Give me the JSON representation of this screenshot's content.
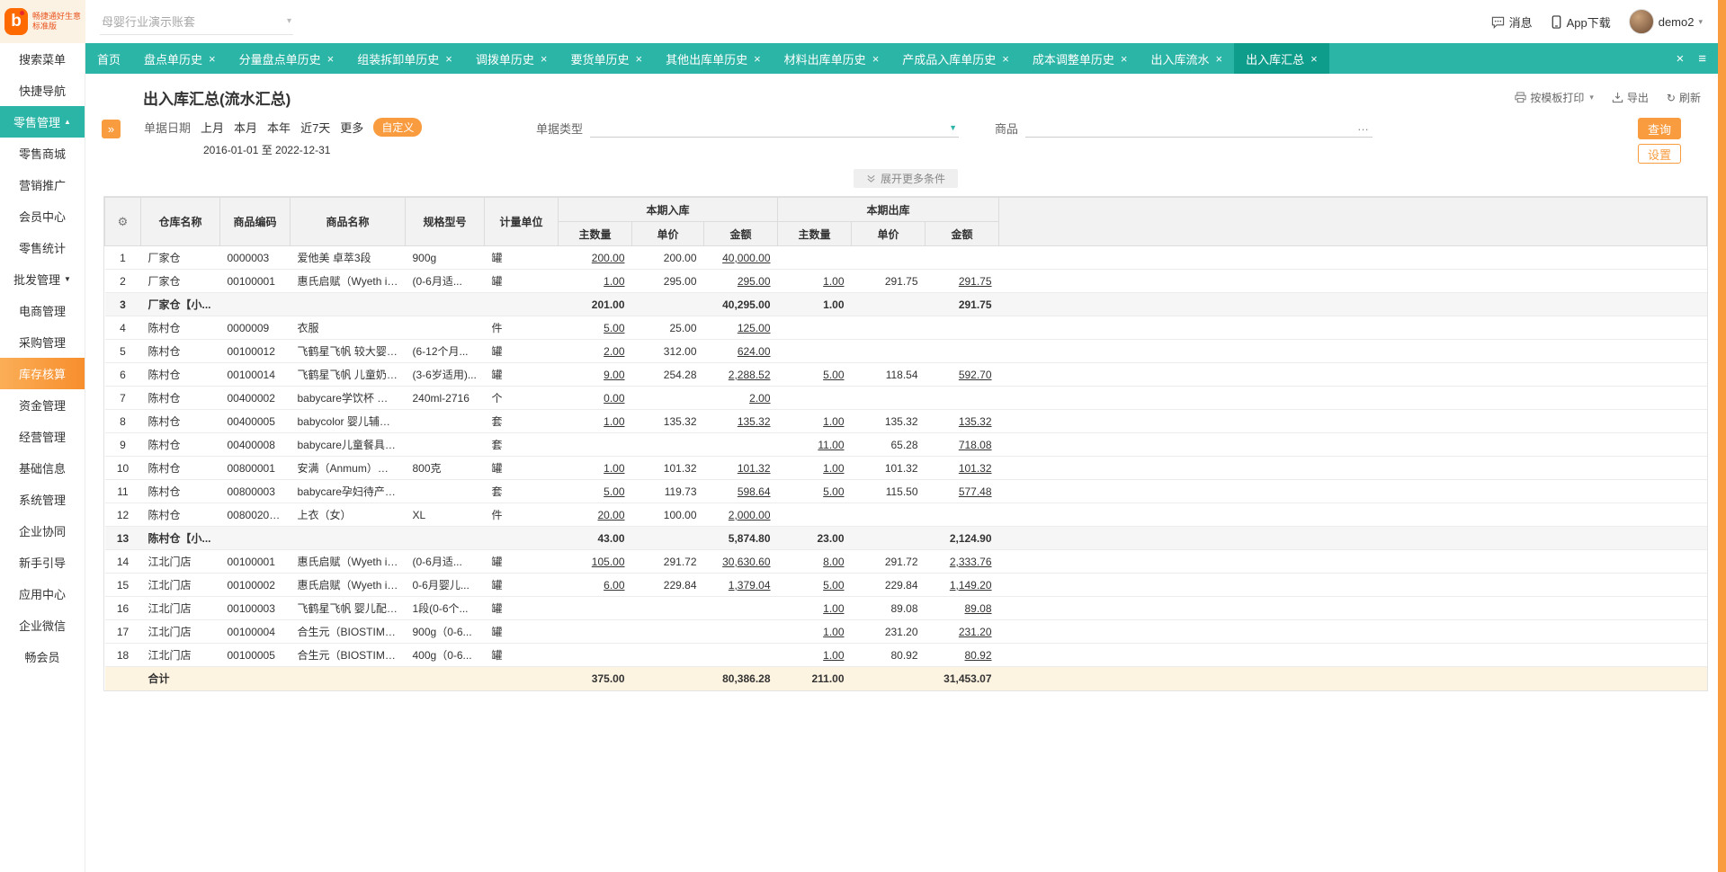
{
  "colors": {
    "teal": "#2bb5a6",
    "teal-dark": "#0e9c8b",
    "orange": "#f89c3f",
    "cream": "#fdf3e1"
  },
  "icons": {
    "collapse": "»",
    "gear": "⚙",
    "refresh": "↻",
    "caret_down": "▾",
    "ellipsis": "…",
    "close_all": "×",
    "menu": "≡"
  },
  "topbar": {
    "logo_line1": "畅捷通好生意",
    "logo_line2": "标准版",
    "logo_letter": "b",
    "account": "母婴行业演示账套",
    "messages": "消息",
    "app_download": "App下载",
    "username": "demo2"
  },
  "sidebar": {
    "items": [
      {
        "label": "搜索菜单",
        "type": "top"
      },
      {
        "label": "快捷导航",
        "type": "top"
      },
      {
        "label": "零售管理",
        "type": "group-active",
        "arrow": "up"
      },
      {
        "label": "零售商城",
        "type": "sub"
      },
      {
        "label": "营销推广",
        "type": "sub"
      },
      {
        "label": "会员中心",
        "type": "sub"
      },
      {
        "label": "零售统计",
        "type": "sub"
      },
      {
        "label": "批发管理",
        "type": "top",
        "arrow": "down"
      },
      {
        "label": "电商管理",
        "type": "top"
      },
      {
        "label": "采购管理",
        "type": "top"
      },
      {
        "label": "库存核算",
        "type": "active-orange"
      },
      {
        "label": "资金管理",
        "type": "top"
      },
      {
        "label": "经营管理",
        "type": "top"
      },
      {
        "label": "基础信息",
        "type": "top"
      },
      {
        "label": "系统管理",
        "type": "top"
      },
      {
        "label": "企业协同",
        "type": "top"
      },
      {
        "label": "新手引导",
        "type": "top"
      },
      {
        "label": "应用中心",
        "type": "top"
      },
      {
        "label": "企业微信",
        "type": "top"
      },
      {
        "label": "畅会员",
        "type": "top"
      }
    ]
  },
  "tabs": [
    {
      "label": "首页",
      "closable": false,
      "active": false
    },
    {
      "label": "盘点单历史",
      "closable": true,
      "active": false
    },
    {
      "label": "分量盘点单历史",
      "closable": true,
      "active": false
    },
    {
      "label": "组装拆卸单历史",
      "closable": true,
      "active": false
    },
    {
      "label": "调拨单历史",
      "closable": true,
      "active": false
    },
    {
      "label": "要货单历史",
      "closable": true,
      "active": false
    },
    {
      "label": "其他出库单历史",
      "closable": true,
      "active": false
    },
    {
      "label": "材料出库单历史",
      "closable": true,
      "active": false
    },
    {
      "label": "产成品入库单历史",
      "closable": true,
      "active": false
    },
    {
      "label": "成本调整单历史",
      "closable": true,
      "active": false
    },
    {
      "label": "出入库流水",
      "closable": true,
      "active": false
    },
    {
      "label": "出入库汇总",
      "closable": true,
      "active": true
    }
  ],
  "page": {
    "title": "出入库汇总(流水汇总)",
    "actions": {
      "print": "按模板打印",
      "export": "导出",
      "refresh": "刷新"
    },
    "filters": {
      "date_label": "单据日期",
      "date_options": [
        "上月",
        "本月",
        "本年",
        "近7天",
        "更多"
      ],
      "custom_badge": "自定义",
      "date_range": "2016-01-01 至 2022-12-31",
      "doc_type_label": "单据类型",
      "product_label": "商品",
      "search_button": "查询",
      "settings_button": "设置",
      "expand_more": "展开更多条件"
    }
  },
  "table": {
    "col_headers": {
      "warehouse": "仓库名称",
      "code": "商品编码",
      "name": "商品名称",
      "spec": "规格型号",
      "unit": "计量单位",
      "in_group": "本期入库",
      "out_group": "本期出库",
      "qty": "主数量",
      "price": "单价",
      "amount": "金额"
    },
    "rows": [
      {
        "num": "1",
        "type": "data",
        "warehouse": "厂家仓",
        "code": "0000003",
        "name": "爱他美 卓萃3段",
        "spec": "900g",
        "unit": "罐",
        "in_qty": "200.00",
        "in_price": "200.00",
        "in_amount": "40,000.00",
        "out_qty": "",
        "out_price": "",
        "out_amount": ""
      },
      {
        "num": "2",
        "type": "data",
        "warehouse": "厂家仓",
        "code": "00100001",
        "name": "惠氏启赋（Wyeth illu...",
        "spec": "(0-6月适...",
        "unit": "罐",
        "in_qty": "1.00",
        "in_price": "295.00",
        "in_amount": "295.00",
        "out_qty": "1.00",
        "out_price": "291.75",
        "out_amount": "291.75"
      },
      {
        "num": "3",
        "type": "subtotal",
        "warehouse": "厂家仓【小...",
        "code": "",
        "name": "",
        "spec": "",
        "unit": "",
        "in_qty": "201.00",
        "in_price": "",
        "in_amount": "40,295.00",
        "out_qty": "1.00",
        "out_price": "",
        "out_amount": "291.75"
      },
      {
        "num": "4",
        "type": "data",
        "warehouse": "陈村仓",
        "code": "0000009",
        "name": "衣服",
        "spec": "",
        "unit": "件",
        "in_qty": "5.00",
        "in_price": "25.00",
        "in_amount": "125.00",
        "out_qty": "",
        "out_price": "",
        "out_amount": ""
      },
      {
        "num": "5",
        "type": "data",
        "warehouse": "陈村仓",
        "code": "00100012",
        "name": "飞鹤星飞帆 较大婴儿配...",
        "spec": "(6-12个月...",
        "unit": "罐",
        "in_qty": "2.00",
        "in_price": "312.00",
        "in_amount": "624.00",
        "out_qty": "",
        "out_price": "",
        "out_amount": ""
      },
      {
        "num": "6",
        "type": "data",
        "warehouse": "陈村仓",
        "code": "00100014",
        "name": "飞鹤星飞帆 儿童奶粉 4...",
        "spec": "(3-6岁适用)...",
        "unit": "罐",
        "in_qty": "9.00",
        "in_price": "254.28",
        "in_amount": "2,288.52",
        "out_qty": "5.00",
        "out_price": "118.54",
        "out_amount": "592.70"
      },
      {
        "num": "7",
        "type": "data",
        "warehouse": "陈村仓",
        "code": "00400002",
        "name": "babycare学饮杯 儿童...",
        "spec": "240ml-2716",
        "unit": "个",
        "in_qty": "0.00",
        "in_price": "",
        "in_amount": "2.00",
        "out_qty": "",
        "out_price": "",
        "out_amount": ""
      },
      {
        "num": "8",
        "type": "data",
        "warehouse": "陈村仓",
        "code": "00400005",
        "name": "babycolor 婴儿辅食机 ...",
        "spec": "",
        "unit": "套",
        "in_qty": "1.00",
        "in_price": "135.32",
        "in_amount": "135.32",
        "out_qty": "1.00",
        "out_price": "135.32",
        "out_amount": "135.32"
      },
      {
        "num": "9",
        "type": "data",
        "warehouse": "陈村仓",
        "code": "00400008",
        "name": "babycare儿童餐具 婴...",
        "spec": "",
        "unit": "套",
        "in_qty": "",
        "in_price": "",
        "in_amount": "",
        "out_qty": "11.00",
        "out_price": "65.28",
        "out_amount": "718.08"
      },
      {
        "num": "10",
        "type": "data",
        "warehouse": "陈村仓",
        "code": "00800001",
        "name": "安满（Anmum）智孕...",
        "spec": "800克",
        "unit": "罐",
        "in_qty": "1.00",
        "in_price": "101.32",
        "in_amount": "101.32",
        "out_qty": "1.00",
        "out_price": "101.32",
        "out_amount": "101.32"
      },
      {
        "num": "11",
        "type": "data",
        "warehouse": "陈村仓",
        "code": "00800003",
        "name": "babycare孕妇待产包 ...",
        "spec": "",
        "unit": "套",
        "in_qty": "5.00",
        "in_price": "119.73",
        "in_amount": "598.64",
        "out_qty": "5.00",
        "out_price": "115.50",
        "out_amount": "577.48"
      },
      {
        "num": "12",
        "type": "data",
        "warehouse": "陈村仓",
        "code": "008002000...",
        "name": "上衣（女）",
        "spec": "XL",
        "unit": "件",
        "in_qty": "20.00",
        "in_price": "100.00",
        "in_amount": "2,000.00",
        "out_qty": "",
        "out_price": "",
        "out_amount": ""
      },
      {
        "num": "13",
        "type": "subtotal",
        "warehouse": "陈村仓【小...",
        "code": "",
        "name": "",
        "spec": "",
        "unit": "",
        "in_qty": "43.00",
        "in_price": "",
        "in_amount": "5,874.80",
        "out_qty": "23.00",
        "out_price": "",
        "out_amount": "2,124.90"
      },
      {
        "num": "14",
        "type": "data",
        "warehouse": "江北门店",
        "code": "00100001",
        "name": "惠氏启赋（Wyeth illu...",
        "spec": "(0-6月适...",
        "unit": "罐",
        "in_qty": "105.00",
        "in_price": "291.72",
        "in_amount": "30,630.60",
        "out_qty": "8.00",
        "out_price": "291.72",
        "out_amount": "2,333.76"
      },
      {
        "num": "15",
        "type": "data",
        "warehouse": "江北门店",
        "code": "00100002",
        "name": "惠氏启赋（Wyeth illu...",
        "spec": "0-6月婴儿...",
        "unit": "罐",
        "in_qty": "6.00",
        "in_price": "229.84",
        "in_amount": "1,379.04",
        "out_qty": "5.00",
        "out_price": "229.84",
        "out_amount": "1,149.20"
      },
      {
        "num": "16",
        "type": "data",
        "warehouse": "江北门店",
        "code": "00100003",
        "name": "飞鹤星飞帆 婴儿配方奶...",
        "spec": "1段(0-6个...",
        "unit": "罐",
        "in_qty": "",
        "in_price": "",
        "in_amount": "",
        "out_qty": "1.00",
        "out_price": "89.08",
        "out_amount": "89.08"
      },
      {
        "num": "17",
        "type": "data",
        "warehouse": "江北门店",
        "code": "00100004",
        "name": "合生元（BIOSTIME） ...",
        "spec": "900g（0-6...",
        "unit": "罐",
        "in_qty": "",
        "in_price": "",
        "in_amount": "",
        "out_qty": "1.00",
        "out_price": "231.20",
        "out_amount": "231.20"
      },
      {
        "num": "18",
        "type": "data",
        "warehouse": "江北门店",
        "code": "00100005",
        "name": "合生元（BIOSTIME） ...",
        "spec": "400g（0-6...",
        "unit": "罐",
        "in_qty": "",
        "in_price": "",
        "in_amount": "",
        "out_qty": "1.00",
        "out_price": "80.92",
        "out_amount": "80.92"
      }
    ],
    "footer": {
      "label": "合计",
      "in_qty": "375.00",
      "in_price": "",
      "in_amount": "80,386.28",
      "out_qty": "211.00",
      "out_price": "",
      "out_amount": "31,453.07"
    }
  }
}
